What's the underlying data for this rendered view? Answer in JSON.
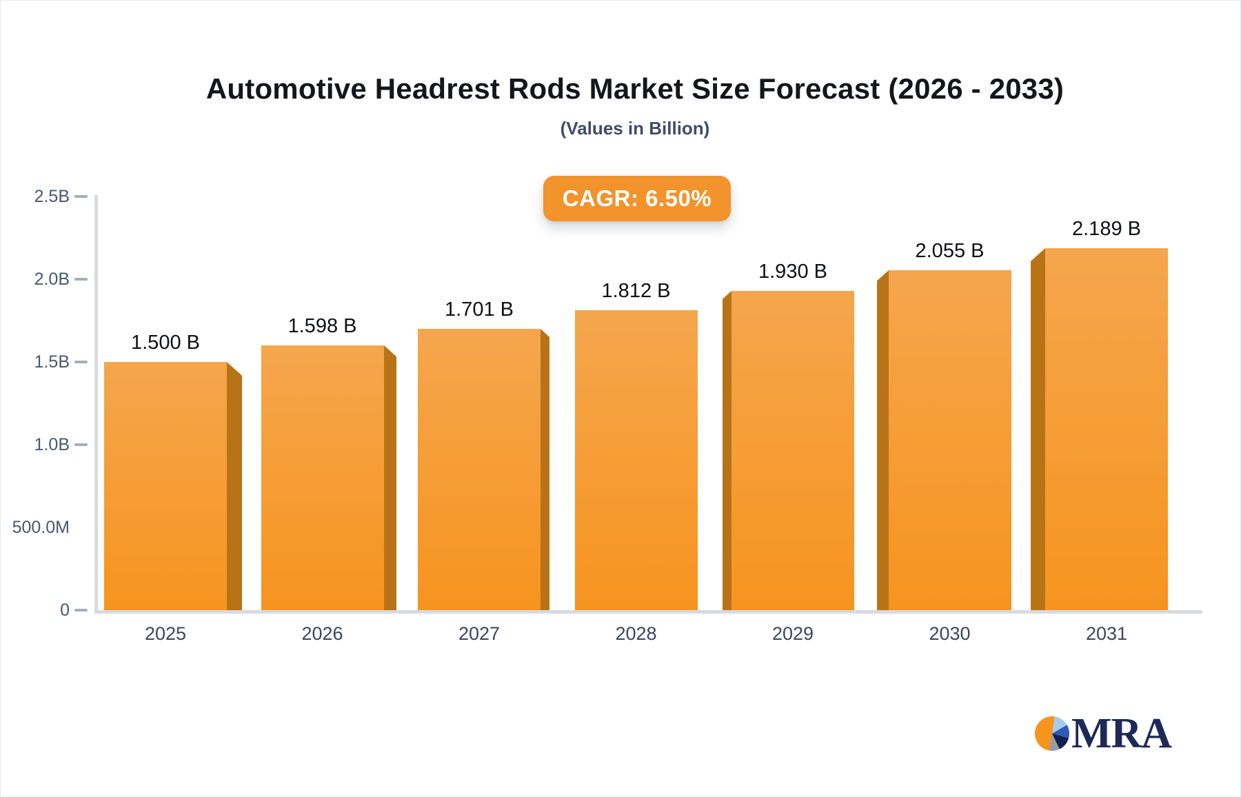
{
  "header": {
    "title": "Automotive Headrest Rods Market Size Forecast (2026 - 2033)",
    "subtitle": "(Values in Billion)",
    "cagr_label": "CAGR: 6.50%"
  },
  "chart_data": {
    "type": "bar",
    "title": "Automotive Headrest Rods Market Size Forecast (2026 - 2033)",
    "subtitle": "(Values in Billion)",
    "cagr": "6.50%",
    "categories": [
      "2025",
      "2026",
      "2027",
      "2028",
      "2029",
      "2030",
      "2031"
    ],
    "values": [
      1.5,
      1.598,
      1.701,
      1.812,
      1.93,
      2.055,
      2.189
    ],
    "value_labels": [
      "1.500 B",
      "1.598 B",
      "1.701 B",
      "1.812 B",
      "1.930 B",
      "2.055 B",
      "2.189 B"
    ],
    "value_unit": "B",
    "ylim": [
      0,
      2.5
    ],
    "grid": false,
    "legend": "none",
    "yticks": [
      {
        "label": "2.5B",
        "value": 2.5,
        "dash": true
      },
      {
        "label": "2.0B",
        "value": 2.0,
        "dash": true
      },
      {
        "label": "1.5B",
        "value": 1.5,
        "dash": true
      },
      {
        "label": "1.0B",
        "value": 1.0,
        "dash": true
      },
      {
        "label": "500.0M",
        "value": 0.5,
        "dash": false
      },
      {
        "label": "0",
        "value": 0.0,
        "dash": true
      }
    ],
    "colors": {
      "bar_top": "#f5a64d",
      "bar_bottom": "#f6941f",
      "bar_side": "#b97317",
      "badge_bg": "#f2932c",
      "axis_line": "#d7dade",
      "tick_dash": "#a6adb8",
      "tick_text": "#4a576d",
      "year_text": "#3a4660",
      "value_text": "#0e1014",
      "logo_navy": "#1d2956"
    }
  },
  "footer": {
    "logo_text": "MRA"
  }
}
